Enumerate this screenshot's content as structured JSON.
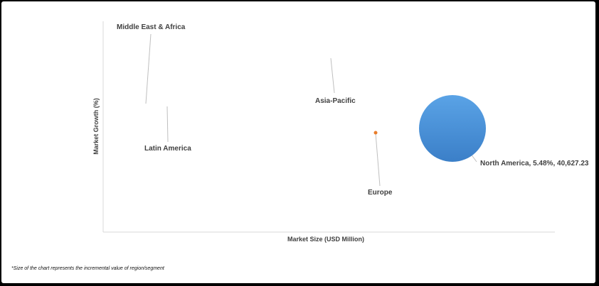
{
  "chart_data": {
    "type": "bubble",
    "xlabel": "Market Size (USD Million)",
    "ylabel": "Market Growth (%)",
    "grid": false,
    "legend": "none",
    "series": [
      {
        "label": "Middle East & Africa",
        "x": 700,
        "y": 5.9,
        "size": 0,
        "color": "#e87d2c",
        "show_bubble": false
      },
      {
        "label": "Latin America",
        "x": 1300,
        "y": 5.6,
        "size": 0,
        "color": "#e87d2c",
        "show_bubble": false
      },
      {
        "label": "Asia-Pacific",
        "x": 30000,
        "y": 6.1,
        "size": 0,
        "color": "#e87d2c",
        "show_bubble": false
      },
      {
        "label": "Europe",
        "x": 28000,
        "y": 5.5,
        "size": 0.05,
        "color": "#e87d2c",
        "show_bubble": true
      },
      {
        "label": "North America, 5.48%, 40,627.23",
        "x": 40627.23,
        "y": 5.48,
        "size": 1,
        "color": "#4a90d9",
        "show_bubble": true
      }
    ]
  },
  "footnote": "*Size of the chart represents the incremental value of region/segment"
}
